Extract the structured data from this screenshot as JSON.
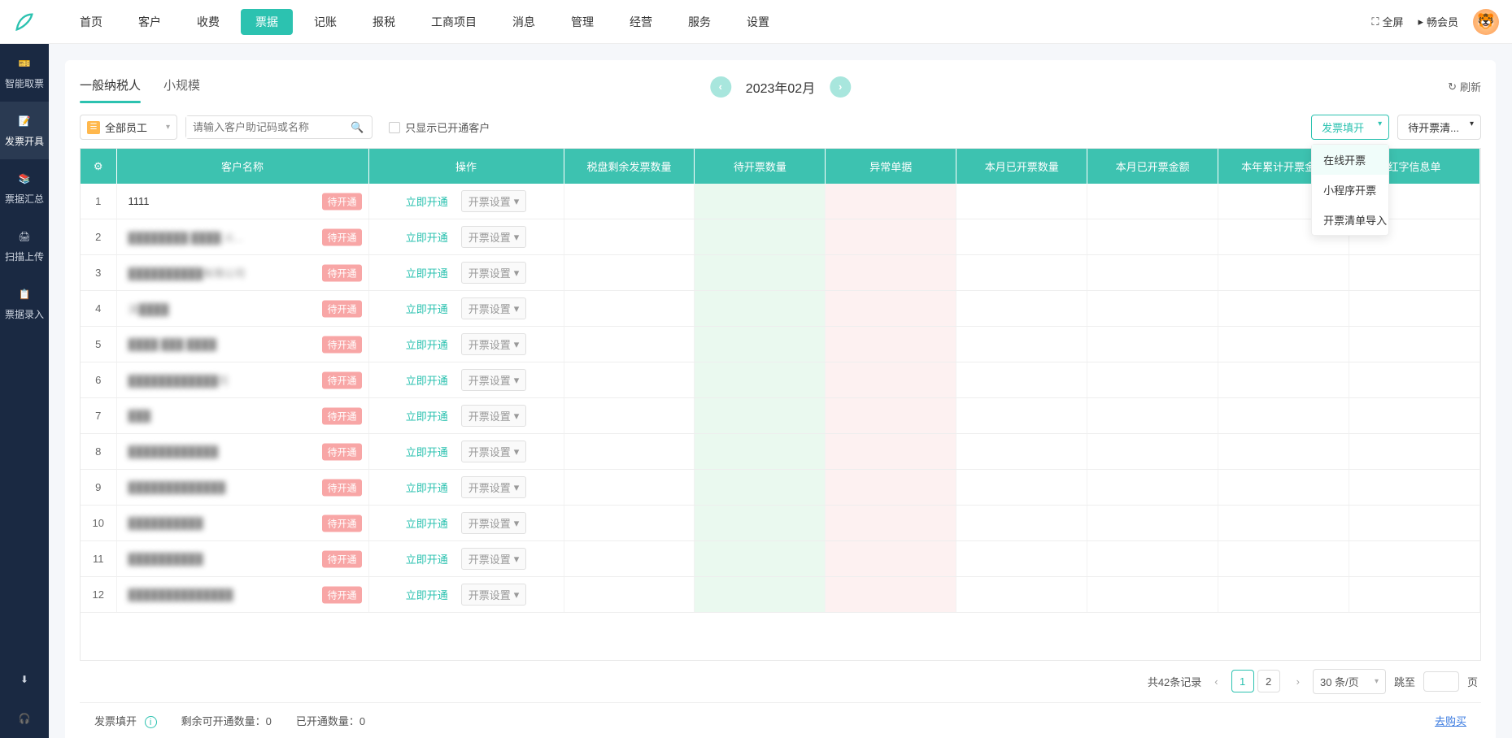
{
  "nav": {
    "items": [
      "首页",
      "客户",
      "收费",
      "票据",
      "记账",
      "报税",
      "工商项目",
      "消息",
      "管理",
      "经营",
      "服务",
      "设置"
    ],
    "active_index": 3,
    "fullscreen": "全屏",
    "member": "畅会员"
  },
  "sidebar": {
    "items": [
      {
        "label": "智能取票",
        "icon": "ticket"
      },
      {
        "label": "发票开具",
        "icon": "edit"
      },
      {
        "label": "票据汇总",
        "icon": "stack"
      },
      {
        "label": "扫描上传",
        "icon": "print"
      },
      {
        "label": "票据录入",
        "icon": "clipboard"
      }
    ],
    "active_index": 1,
    "bottom": [
      {
        "icon": "download"
      },
      {
        "icon": "headset"
      }
    ]
  },
  "tabs": {
    "items": [
      "一般纳税人",
      "小规模"
    ],
    "active_index": 0
  },
  "date": {
    "text": "2023年02月"
  },
  "refresh_label": "刷新",
  "filters": {
    "employee": "全部员工",
    "search_placeholder": "请输入客户助记码或名称",
    "only_opened": "只显示已开通客户"
  },
  "toolbar": {
    "invoice_fill": "发票填开",
    "pending_list": "待开票清...",
    "dropdown_options": [
      "在线开票",
      "小程序开票",
      "开票清单导入"
    ]
  },
  "table": {
    "gear_label": "⚙",
    "columns": [
      "客户名称",
      "操作",
      "税盘剩余发票数量",
      "待开票数量",
      "异常单据",
      "本月已开票数量",
      "本月已开票金额",
      "本年累计开票金额",
      "红字信息单"
    ],
    "action_open": "立即开通",
    "action_setting": "开票设置",
    "badge": "待开通",
    "rows": [
      {
        "idx": "1",
        "name": "1111",
        "blur": false
      },
      {
        "idx": "2",
        "name": "████████ ████ 火...",
        "blur": true
      },
      {
        "idx": "3",
        "name": "██████████有限公司",
        "blur": true
      },
      {
        "idx": "4",
        "name": "滨████",
        "blur": true
      },
      {
        "idx": "5",
        "name": "████ ███ ████",
        "blur": true
      },
      {
        "idx": "6",
        "name": "████████████司",
        "blur": true
      },
      {
        "idx": "7",
        "name": "███",
        "blur": true
      },
      {
        "idx": "8",
        "name": "████████████",
        "blur": true
      },
      {
        "idx": "9",
        "name": "█████████████",
        "blur": true
      },
      {
        "idx": "10",
        "name": "██████████",
        "blur": true
      },
      {
        "idx": "11",
        "name": "██████████",
        "blur": true
      },
      {
        "idx": "12",
        "name": "██████████████",
        "blur": true
      }
    ]
  },
  "pagination": {
    "total": "共42条记录",
    "pages": [
      "1",
      "2"
    ],
    "active": 0,
    "size": "30 条/页",
    "jump": "跳至",
    "page_suffix": "页"
  },
  "footer": {
    "title": "发票填开",
    "remain": "剩余可开通数量：0",
    "opened": "已开通数量：0",
    "buy": "去购买"
  }
}
